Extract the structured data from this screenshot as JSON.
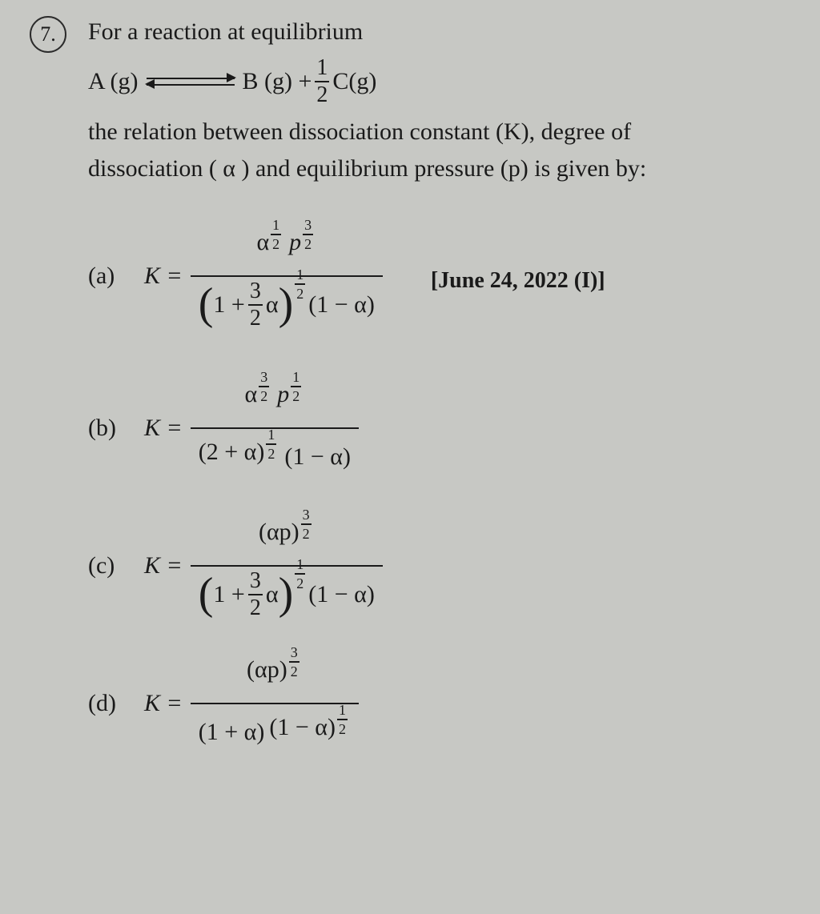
{
  "question": {
    "number": "7.",
    "stem_line1": "For a reaction at equilibrium",
    "reaction": {
      "lhs": "A (g)",
      "rhs1": "B (g) +",
      "half_num": "1",
      "half_den": "2",
      "rhs2": "C(g)"
    },
    "stem_line2": "the relation between dissociation constant (K), degree of",
    "stem_line3": "dissociation ( α ) and equilibrium pressure (p) is given by:",
    "date_note": "[June 24, 2022 (I)]"
  },
  "symbols": {
    "K_eq": "K =",
    "alpha": "α",
    "p": "p",
    "one_minus_alpha": "(1 − α)",
    "one_plus_alpha": "(1 + α)",
    "two_plus_alpha": "(2 + α)",
    "alpha_p": "(αp)",
    "one": "1",
    "two": "2",
    "three": "3",
    "one_plus_3_2_alpha_pre": "1 +",
    "one_plus_3_2_alpha_post": "α"
  },
  "options": {
    "a": {
      "label": "(a)"
    },
    "b": {
      "label": "(b)"
    },
    "c": {
      "label": "(c)"
    },
    "d": {
      "label": "(d)"
    }
  },
  "style": {
    "background": "#c7c8c4",
    "text_color": "#1a1a1a",
    "font_family": "Times New Roman"
  }
}
